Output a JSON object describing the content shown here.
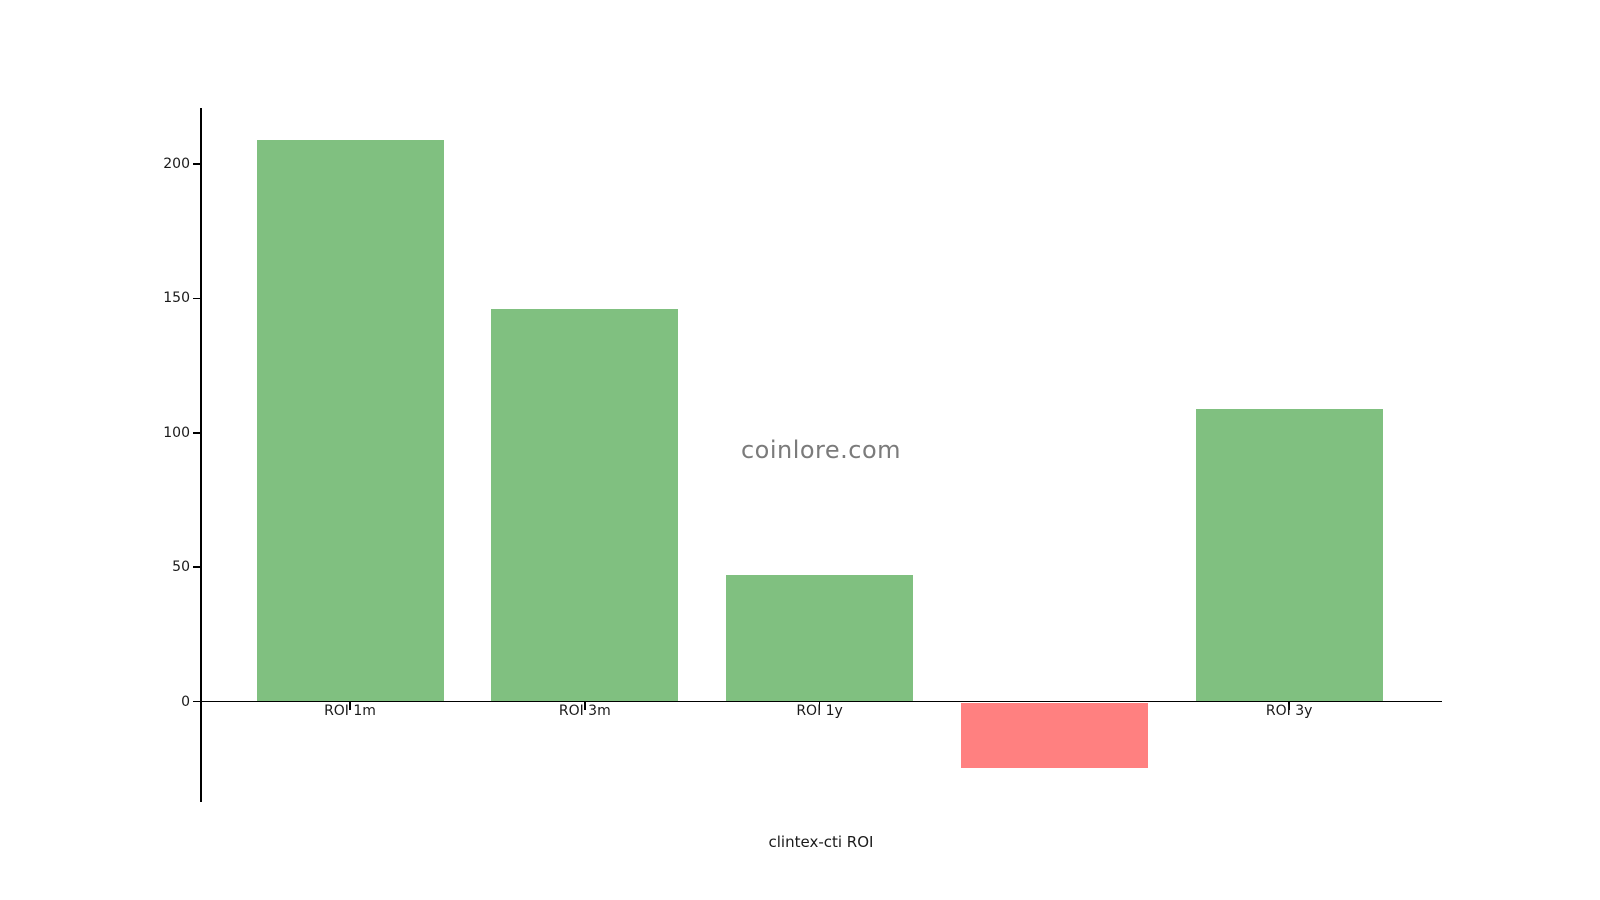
{
  "watermark": {
    "text": "coinlore.com",
    "color": "#7b7b7b"
  },
  "footer_title": "clintex-cti ROI",
  "chart_data": {
    "type": "bar",
    "title": "clintex-cti ROI",
    "categories": [
      "ROI 1m",
      "ROI 3m",
      "ROI 1y",
      "",
      "ROI 3y"
    ],
    "values": [
      209,
      146,
      47,
      -24,
      109
    ],
    "bar_colors": [
      "#80c080",
      "#80c080",
      "#80c080",
      "#ff8080",
      "#80c080"
    ],
    "positive_color": "#80c080",
    "negative_color": "#ff8080",
    "axis_color": "#000000",
    "yticks": [
      0,
      50,
      100,
      150,
      200
    ],
    "ylim": [
      -37,
      221
    ],
    "xlabel": "",
    "ylabel": "",
    "grid": false,
    "legend": null,
    "watermark": "coinlore.com",
    "notes": "x tick label of the 4th (negative, red) bar is not visible; it is covered by the bar below the zero line"
  }
}
